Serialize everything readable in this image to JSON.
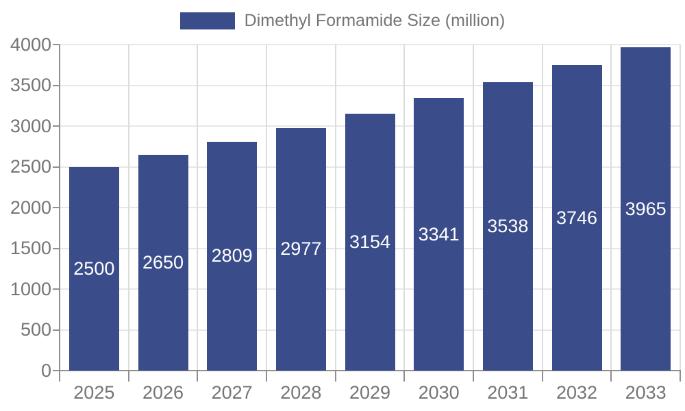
{
  "chart_data": {
    "type": "bar",
    "legend": "Dimethyl Formamide Size (million)",
    "legend_position": "top-center",
    "categories": [
      "2025",
      "2026",
      "2027",
      "2028",
      "2029",
      "2030",
      "2031",
      "2032",
      "2033"
    ],
    "values": [
      2500,
      2650,
      2809,
      2977,
      3154,
      3341,
      3538,
      3746,
      3965
    ],
    "value_labels": [
      "2500",
      "2650",
      "2809",
      "2977",
      "3154",
      "3341",
      "3538",
      "3746",
      "3965"
    ],
    "value_labels_position": "inside-center",
    "ylim": [
      0,
      4000
    ],
    "y_ticks": [
      0,
      500,
      1000,
      1500,
      2000,
      2500,
      3000,
      3500,
      4000
    ],
    "y_tick_labels": [
      "0",
      "500",
      "1000",
      "1500",
      "2000",
      "2500",
      "3000",
      "3500",
      "4000"
    ],
    "grid": true,
    "colors": {
      "bar": "#3A4C89",
      "axis_text": "#757575",
      "legend_text": "#757575",
      "value_text": "#FFFFFF",
      "grid_horizontal": "#E7E7E7",
      "grid_vertical": "#DCDCDC",
      "axis_line": "#8F8F8F",
      "background": "#FFFFFF"
    }
  }
}
